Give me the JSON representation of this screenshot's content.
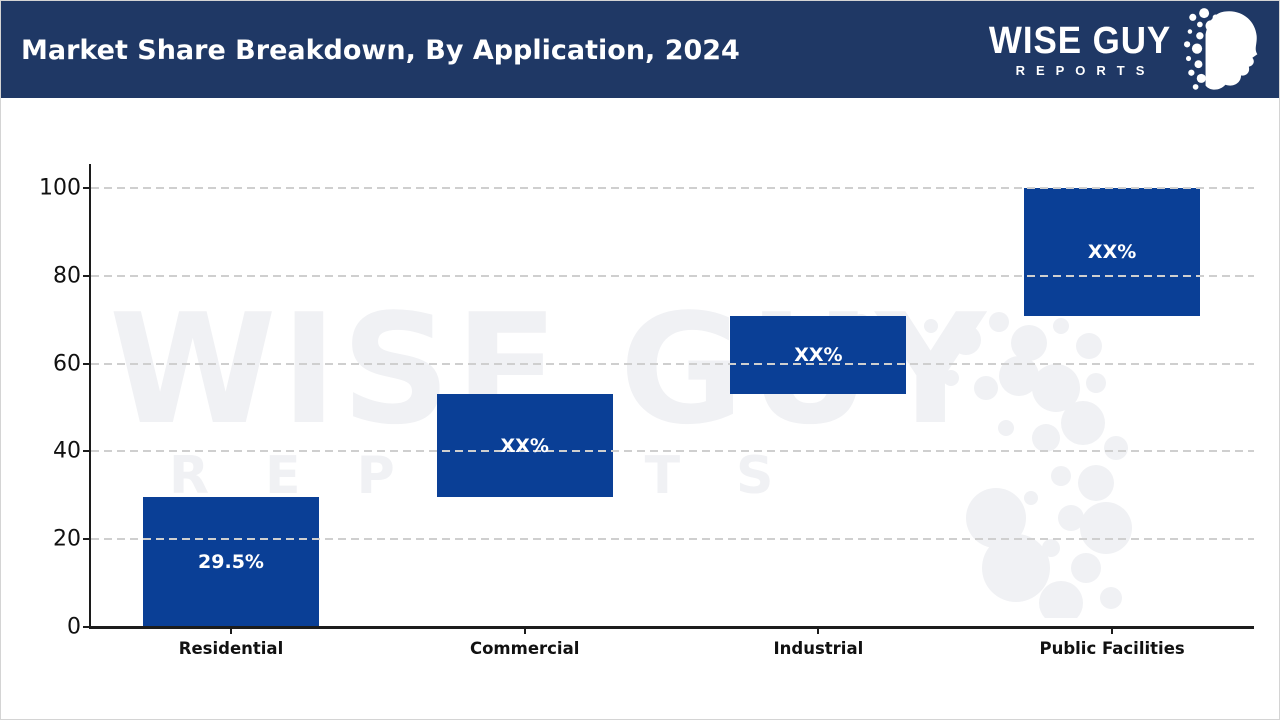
{
  "header": {
    "title": "Market Share Breakdown, By Application, 2024",
    "logo": {
      "line1": "WISE GUY",
      "line2": "REPORTS"
    }
  },
  "watermark": {
    "line1": "WISE GUY",
    "line2": "REPORTS"
  },
  "colors": {
    "header_bg": "#1f3865",
    "bar": "#0a3f96",
    "bar_label": "#ffffff",
    "grid": "#cfcfcf",
    "axis": "#1c1c1c",
    "watermark": "#f0f1f4"
  },
  "chart_data": {
    "type": "bar",
    "subtype": "waterfall",
    "title": "Market Share Breakdown, By Application, 2024",
    "categories": [
      "Residential",
      "Commercial",
      "Industrial",
      "Public Facilities"
    ],
    "segments": [
      {
        "category": "Residential",
        "start": 0,
        "end": 29.5,
        "label": "29.5%"
      },
      {
        "category": "Commercial",
        "start": 29.5,
        "end": 53.0,
        "label": "XX%"
      },
      {
        "category": "Industrial",
        "start": 53.0,
        "end": 70.8,
        "label": "XX%"
      },
      {
        "category": "Public Facilities",
        "start": 70.8,
        "end": 100,
        "label": "XX%"
      }
    ],
    "yticks": [
      0,
      20,
      40,
      60,
      80,
      100
    ],
    "ylim": [
      0,
      105
    ],
    "xlabel": "",
    "ylabel": "",
    "grid": "horizontal-dashed",
    "legend": "none"
  }
}
